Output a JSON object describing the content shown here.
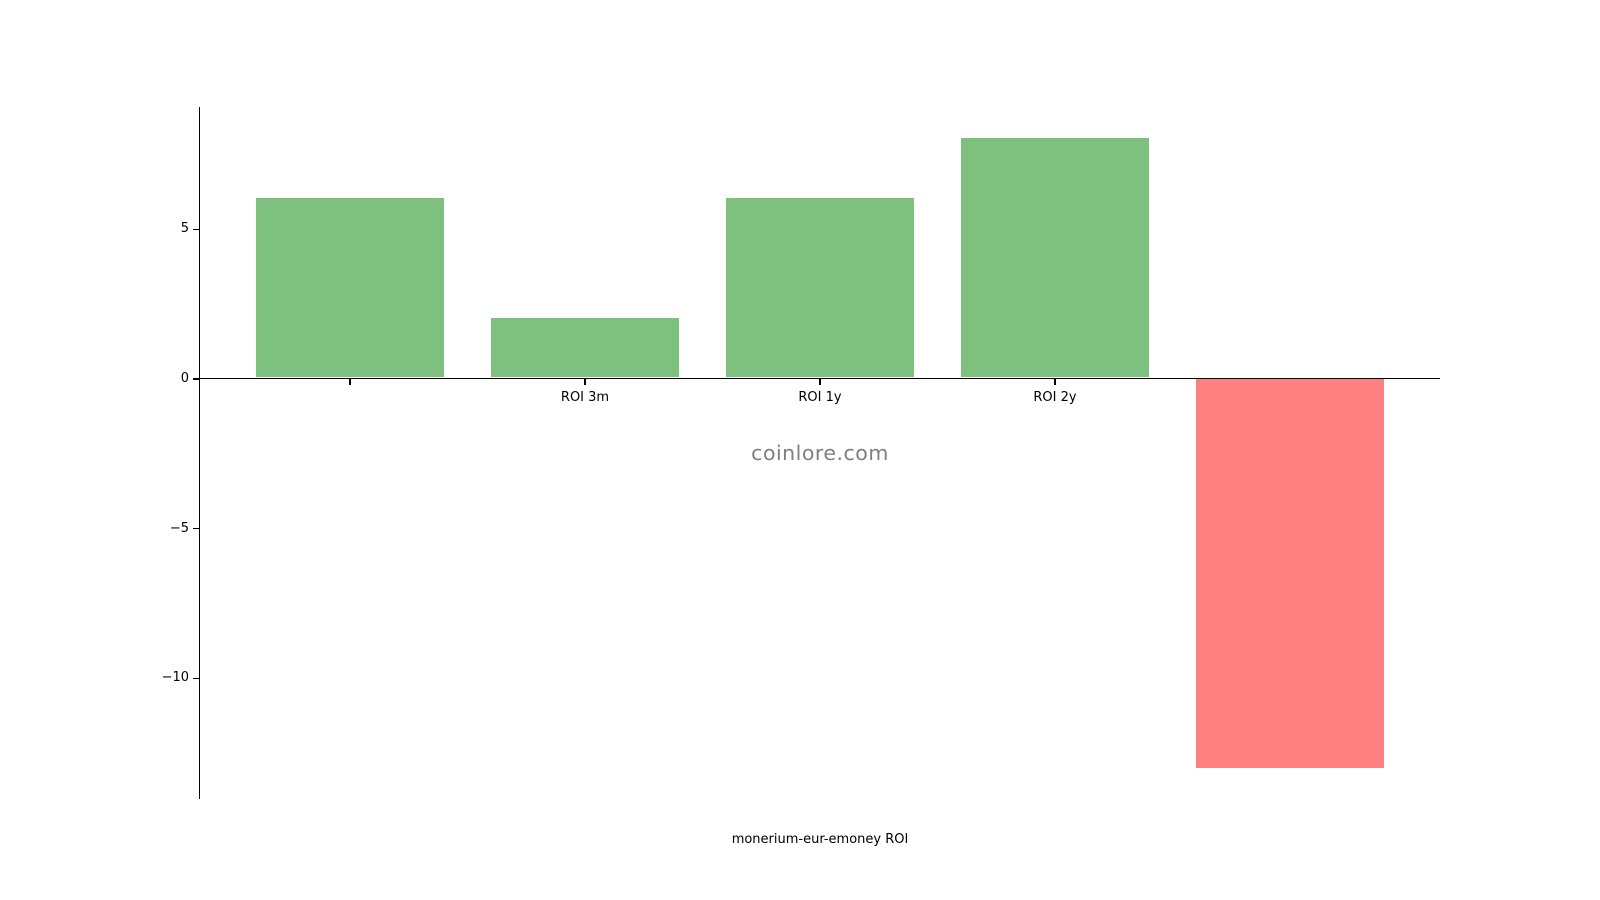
{
  "chart_data": {
    "type": "bar",
    "title": "",
    "xlabel": "monerium-eur-emoney ROI",
    "ylabel": "",
    "watermark": "coinlore.com",
    "categories": [
      "",
      "ROI 3m",
      "ROI 1y",
      "ROI 2y",
      ""
    ],
    "values": [
      6,
      2,
      6,
      8,
      -13
    ],
    "x_tick_indices": [
      0,
      1,
      2,
      3
    ],
    "yticks": [
      {
        "value": 5,
        "label": "5"
      },
      {
        "value": 0,
        "label": "0"
      },
      {
        "value": -5,
        "label": "−5"
      },
      {
        "value": -10,
        "label": "−10"
      }
    ],
    "ylim": [
      -14.05,
      9.05
    ],
    "grid": false,
    "legend": false,
    "colors": {
      "positive_bar": "#7ec07e",
      "negative_bar": "#ff8080",
      "axis": "#000000",
      "tick_label": "#000000",
      "watermark": "#7f7f7f",
      "background": "#ffffff"
    }
  }
}
